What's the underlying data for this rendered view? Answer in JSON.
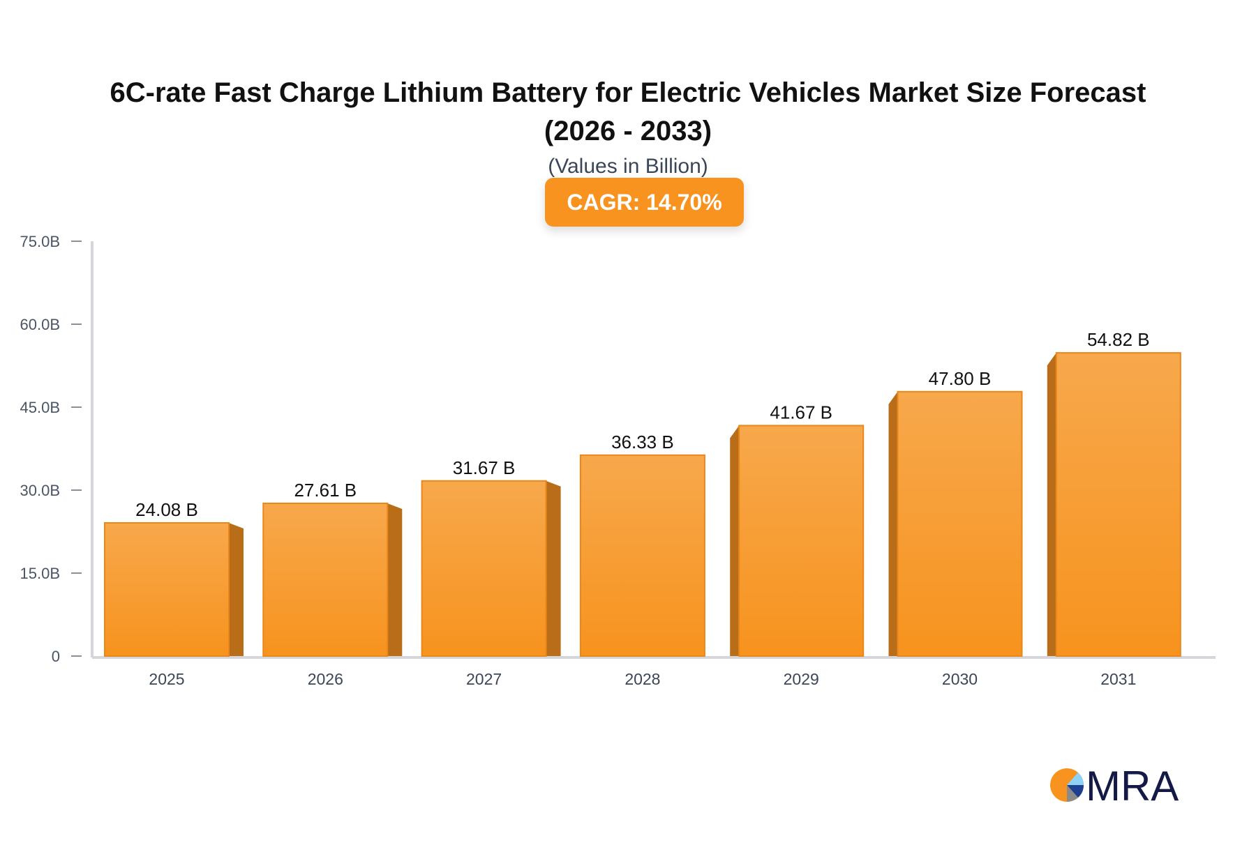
{
  "chart_data": {
    "type": "bar",
    "title": "6C-rate Fast Charge Lithium Battery for Electric Vehicles Market Size Forecast (2026 - 2033)",
    "title_lines": [
      "6C-rate Fast Charge Lithium Battery for Electric Vehicles Market Size Forecast",
      "(2026 - 2033)"
    ],
    "subtitle": "(Values in Billion)",
    "badge": "CAGR: 14.70%",
    "categories": [
      "2025",
      "2026",
      "2027",
      "2028",
      "2029",
      "2030",
      "2031"
    ],
    "values": [
      24.08,
      27.61,
      31.67,
      36.33,
      41.67,
      47.8,
      54.82
    ],
    "data_labels": [
      "24.08 B",
      "27.61 B",
      "31.67 B",
      "36.33 B",
      "41.67 B",
      "47.80 B",
      "54.82 B"
    ],
    "yticks": [
      0,
      15,
      30,
      45,
      60,
      75
    ],
    "ytick_labels": [
      "0",
      "15.0B",
      "30.0B",
      "45.0B",
      "60.0B",
      "75.0B"
    ],
    "ylim": [
      0,
      75
    ],
    "xlabel": "",
    "ylabel": "",
    "grid": false,
    "colors": {
      "bar": "#f7931e",
      "bar_top": "#f7a84c",
      "bar_side": "#b96d18",
      "badge": "#f7931e",
      "axis": "#d4d6dc"
    }
  },
  "logo": {
    "text": "MRA"
  }
}
